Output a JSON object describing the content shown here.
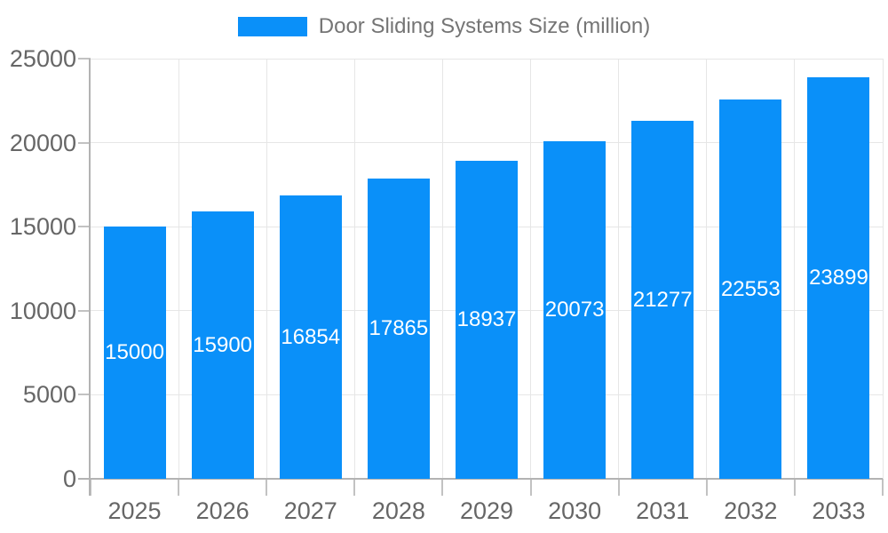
{
  "chart_data": {
    "type": "bar",
    "title": "Door Sliding Systems Size (million)",
    "series_name": "Door Sliding Systems Size (million)",
    "categories": [
      "2025",
      "2026",
      "2027",
      "2028",
      "2029",
      "2030",
      "2031",
      "2032",
      "2033"
    ],
    "values": [
      15000,
      15900,
      16854,
      17865,
      18937,
      20073,
      21277,
      22553,
      23899
    ],
    "xlabel": "",
    "ylabel": "",
    "ylim": [
      0,
      25000
    ],
    "yticks": [
      0,
      5000,
      10000,
      15000,
      20000,
      25000
    ],
    "grid": "on",
    "legend_position": "top-center",
    "value_label_style": "inside-center-white"
  },
  "colors": {
    "bar": "#0a90f9",
    "grid": "#e6e6e6",
    "axis": "#b3b3b3",
    "tick": "#c2c2c2",
    "axis_label": "#666666",
    "legend_text": "#757575",
    "value_label": "#ffffff",
    "background": "#ffffff"
  }
}
